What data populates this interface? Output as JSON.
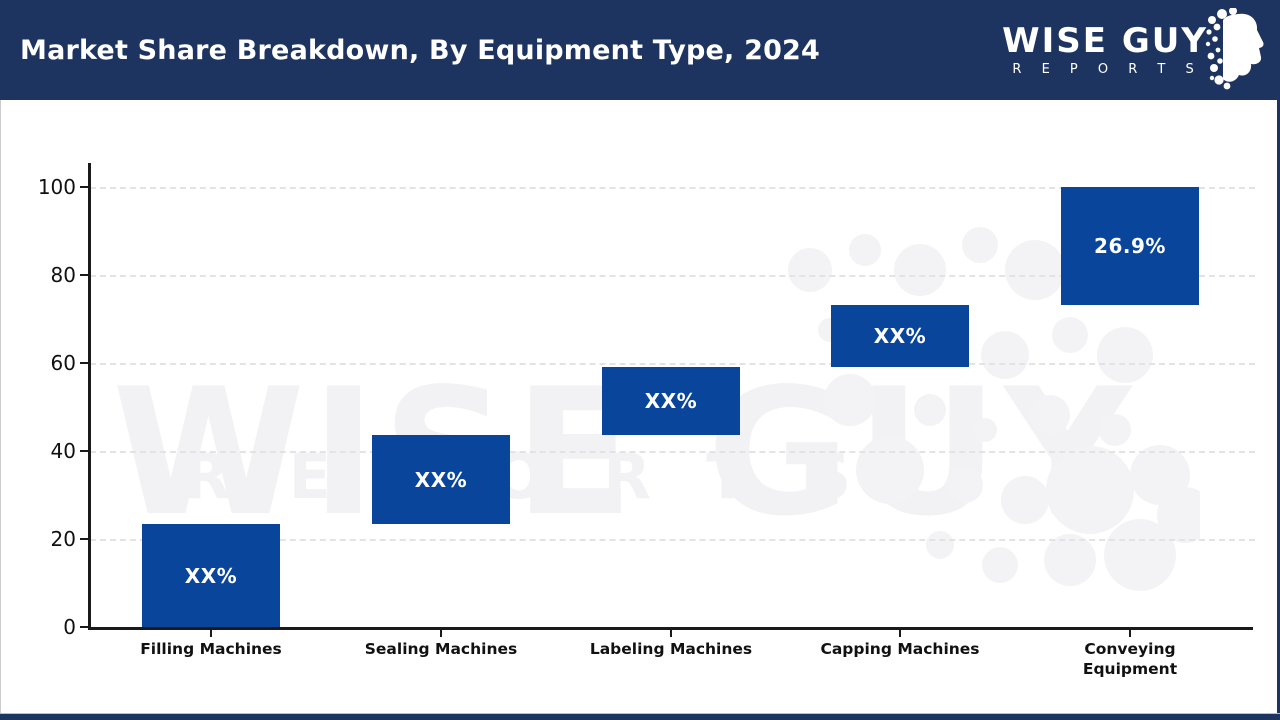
{
  "header": {
    "title": "Market Share Breakdown, By Equipment Type, 2024",
    "logo": {
      "line1": "WISE GUY",
      "line2": "R E P O R T S",
      "icon": "dotted-face-profile"
    }
  },
  "watermark": {
    "line1": "WISE GUY",
    "line2": "REPORTS",
    "icon": "dotted-face-profile"
  },
  "colors": {
    "header_bg": "#1E3460",
    "bar": "#0A459C",
    "bar_label": "#FFFFFF",
    "grid": "#E3E3E3",
    "axis": "#1A1A1A",
    "watermark": "#F2F2F4",
    "text": "#111111"
  },
  "chart_data": {
    "type": "bar",
    "subtype": "waterfall-floating-bars",
    "title": "Market Share Breakdown, By Equipment Type, 2024",
    "xlabel": "",
    "ylabel": "",
    "ylim": [
      0,
      105
    ],
    "yticks": [
      0,
      20,
      40,
      60,
      80,
      100
    ],
    "grid": "horizontal-dashed",
    "legend": false,
    "categories": [
      "Filling Machines",
      "Sealing Machines",
      "Labeling Machines",
      "Capping Machines",
      "Conveying Equipment"
    ],
    "segments": [
      {
        "category": "Filling Machines",
        "start": 0,
        "end": 23.4,
        "value": 23.4,
        "label": "XX%"
      },
      {
        "category": "Sealing Machines",
        "start": 23.4,
        "end": 43.6,
        "value": 20.2,
        "label": "XX%"
      },
      {
        "category": "Labeling Machines",
        "start": 43.6,
        "end": 59.1,
        "value": 15.5,
        "label": "XX%"
      },
      {
        "category": "Capping Machines",
        "start": 59.1,
        "end": 73.2,
        "value": 14.1,
        "label": "XX%"
      },
      {
        "category": "Conveying Equipment",
        "start": 73.1,
        "end": 100,
        "value": 26.9,
        "label": "26.9%"
      }
    ]
  }
}
